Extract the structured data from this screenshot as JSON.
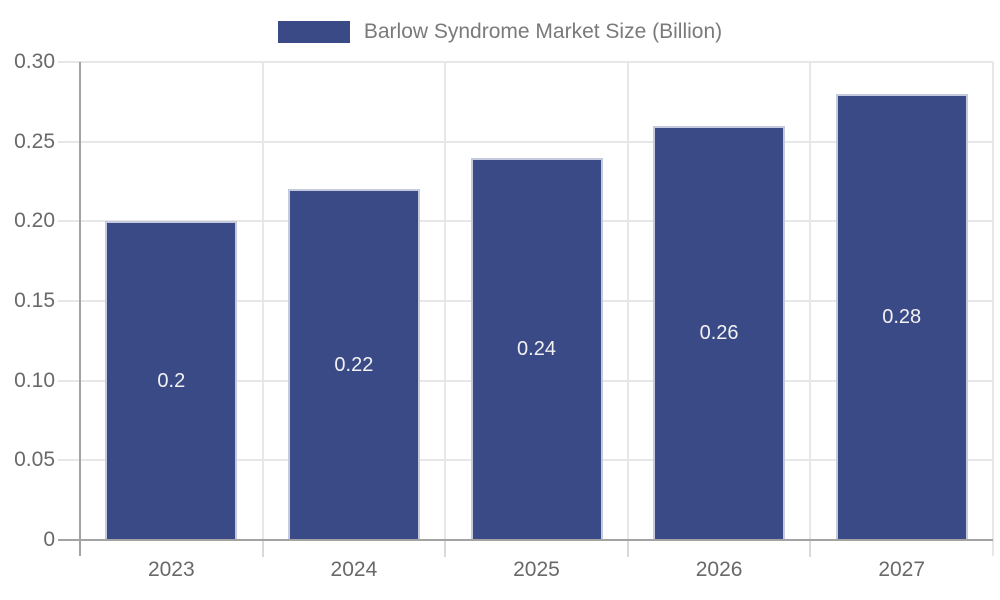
{
  "legend": {
    "label": "Barlow Syndrome Market Size (Billion)"
  },
  "chart_data": {
    "type": "bar",
    "title": "Barlow Syndrome Market Size (Billion)",
    "categories": [
      "2023",
      "2024",
      "2025",
      "2026",
      "2027"
    ],
    "values": [
      0.2,
      0.22,
      0.24,
      0.26,
      0.28
    ],
    "value_labels": [
      "0.2",
      "0.22",
      "0.24",
      "0.26",
      "0.28"
    ],
    "xlabel": "",
    "ylabel": "",
    "ylim": [
      0,
      0.3
    ],
    "yticks": [
      0,
      0.05,
      0.1,
      0.15,
      0.2,
      0.25,
      0.3
    ],
    "ytick_labels": [
      "0",
      "0.05",
      "0.10",
      "0.15",
      "0.20",
      "0.25",
      "0.30"
    ],
    "grid": true,
    "legend_position": "top-center",
    "colors": {
      "bar": "#3a4a86",
      "bar_edge": "#c5c9dd",
      "grid": "#e7e7e7",
      "tick": "#d9d9d9",
      "axis": "#a3a3a3",
      "tick_label": "#696969",
      "legend_label": "#7a7a7a",
      "value_label": "#f2f2f2",
      "background": "#ffffff"
    }
  }
}
